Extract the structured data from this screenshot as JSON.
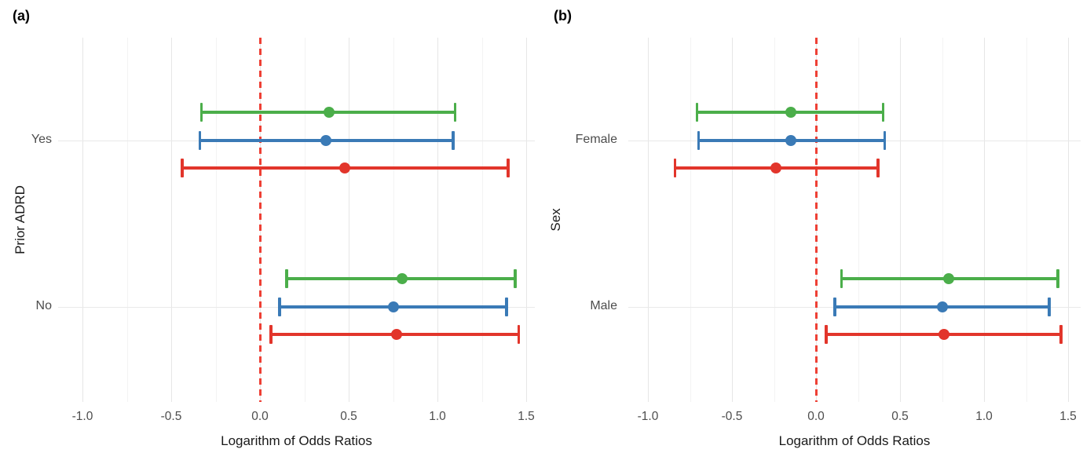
{
  "colors": {
    "green": "#4bae4a",
    "blue": "#3a7ab6",
    "red": "#e2352b",
    "reference_line": "#ee4035"
  },
  "chart_data": [
    {
      "panel_label": "(a)",
      "type": "scatter",
      "subtype": "forest-plot-errorbars",
      "xlabel": "Logarithm of Odds Ratios",
      "ylabel": "Prior ADRD",
      "categories": [
        "Yes",
        "No"
      ],
      "x_ticks": [
        {
          "label": "-1.0",
          "value": -1.0
        },
        {
          "label": "-0.5",
          "value": -0.5
        },
        {
          "label": "0.0",
          "value": 0.0
        },
        {
          "label": "0.5",
          "value": 0.5
        },
        {
          "label": "1.0",
          "value": 1.0
        },
        {
          "label": "1.5",
          "value": 1.5
        }
      ],
      "xlim": [
        -1.15,
        1.55
      ],
      "reference_line_x": 0,
      "grid": true,
      "legend": "none",
      "series": [
        {
          "name": "green",
          "color_key": "green",
          "values": [
            {
              "category": "Yes",
              "estimate": 0.39,
              "ci_low": -0.33,
              "ci_high": 1.1
            },
            {
              "category": "No",
              "estimate": 0.8,
              "ci_low": 0.15,
              "ci_high": 1.44
            }
          ]
        },
        {
          "name": "blue",
          "color_key": "blue",
          "values": [
            {
              "category": "Yes",
              "estimate": 0.37,
              "ci_low": -0.34,
              "ci_high": 1.09
            },
            {
              "category": "No",
              "estimate": 0.75,
              "ci_low": 0.11,
              "ci_high": 1.39
            }
          ]
        },
        {
          "name": "red",
          "color_key": "red",
          "values": [
            {
              "category": "Yes",
              "estimate": 0.48,
              "ci_low": -0.44,
              "ci_high": 1.4
            },
            {
              "category": "No",
              "estimate": 0.77,
              "ci_low": 0.06,
              "ci_high": 1.46
            }
          ]
        }
      ]
    },
    {
      "panel_label": "(b)",
      "type": "scatter",
      "subtype": "forest-plot-errorbars",
      "xlabel": "Logarithm of Odds Ratios",
      "ylabel": "Sex",
      "categories": [
        "Female",
        "Male"
      ],
      "x_ticks": [
        {
          "label": "-1.0",
          "value": -1.0
        },
        {
          "label": "-0.5",
          "value": -0.5
        },
        {
          "label": "0.0",
          "value": 0.0
        },
        {
          "label": "0.5",
          "value": 0.5
        },
        {
          "label": "1.0",
          "value": 1.0
        },
        {
          "label": "1.5",
          "value": 1.5
        }
      ],
      "xlim": [
        -1.15,
        1.57
      ],
      "reference_line_x": 0,
      "grid": true,
      "legend": "none",
      "series": [
        {
          "name": "green",
          "color_key": "green",
          "values": [
            {
              "category": "Female",
              "estimate": -0.15,
              "ci_low": -0.71,
              "ci_high": 0.4
            },
            {
              "category": "Male",
              "estimate": 0.79,
              "ci_low": 0.15,
              "ci_high": 1.44
            }
          ]
        },
        {
          "name": "blue",
          "color_key": "blue",
          "values": [
            {
              "category": "Female",
              "estimate": -0.15,
              "ci_low": -0.7,
              "ci_high": 0.41
            },
            {
              "category": "Male",
              "estimate": 0.75,
              "ci_low": 0.11,
              "ci_high": 1.39
            }
          ]
        },
        {
          "name": "red",
          "color_key": "red",
          "values": [
            {
              "category": "Female",
              "estimate": -0.24,
              "ci_low": -0.84,
              "ci_high": 0.37
            },
            {
              "category": "Male",
              "estimate": 0.76,
              "ci_low": 0.06,
              "ci_high": 1.46
            }
          ]
        }
      ]
    }
  ]
}
